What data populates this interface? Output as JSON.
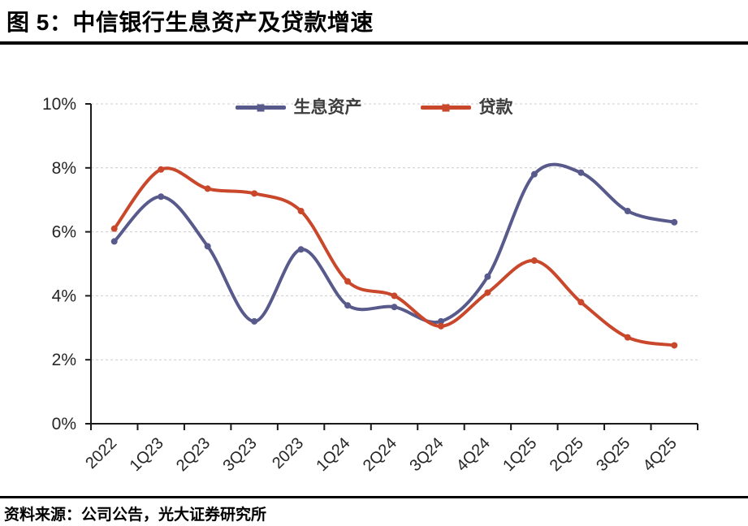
{
  "page": {
    "figure_title": "图 5：中信银行生息资产及贷款增速",
    "source_note": "资料来源：公司公告，光大证券研究所"
  },
  "chart_data": {
    "type": "line",
    "title": "图 5：中信银行生息资产及贷款增速",
    "categories": [
      "2022",
      "1Q23",
      "2Q23",
      "3Q23",
      "2023",
      "1Q24",
      "2Q24",
      "3Q24",
      "4Q24",
      "1Q25",
      "2Q25",
      "3Q25",
      "4Q25"
    ],
    "series": [
      {
        "name": "生息资产",
        "color": "#585a8c",
        "values": [
          5.7,
          7.1,
          5.55,
          3.2,
          5.45,
          3.7,
          3.65,
          3.2,
          4.6,
          7.8,
          7.85,
          6.65,
          6.3
        ]
      },
      {
        "name": "贷款",
        "color": "#c9472b",
        "values": [
          6.1,
          7.95,
          7.35,
          7.2,
          6.65,
          4.45,
          4.0,
          3.05,
          4.1,
          5.1,
          3.8,
          2.7,
          2.45
        ]
      }
    ],
    "y_unit": "%",
    "ylim": [
      0,
      10
    ],
    "y_tick_values": [
      0,
      2,
      4,
      6,
      8,
      10
    ],
    "y_tick_labels": [
      "0%",
      "2%",
      "4%",
      "6%",
      "8%",
      "10%"
    ],
    "xlabel": "",
    "ylabel": "",
    "grid": "horizontal-dashed",
    "line_style": "smooth-with-markers",
    "legend_position": "top-center",
    "colors": {
      "assets_line": "#585a8c",
      "loans_line": "#c9472b",
      "gridline": "#cccccc",
      "axis": "#1a1a1a"
    }
  }
}
